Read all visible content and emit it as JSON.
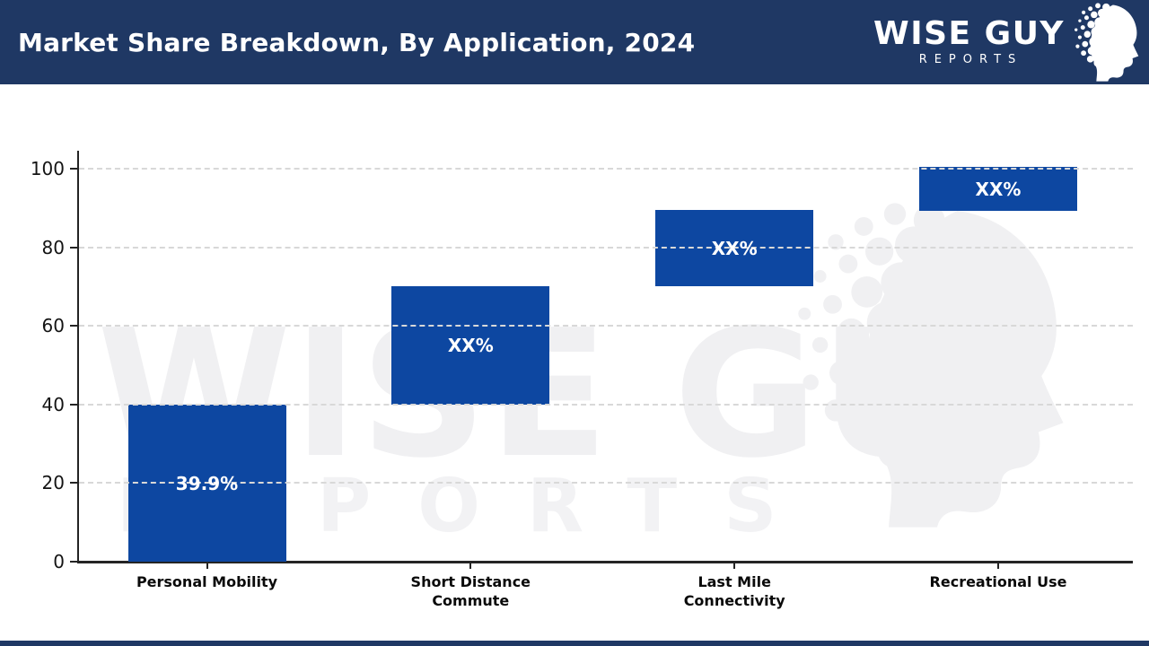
{
  "header": {
    "title": "Market Share Breakdown, By Application, 2024",
    "logo": {
      "line1": "WISE GUY",
      "line2": "REPORTS"
    }
  },
  "watermark": {
    "line1": "WISE GU",
    "line2": "REPORTS"
  },
  "chart_data": {
    "type": "bar",
    "subtype": "waterfall-floating-bars",
    "title": "Market Share Breakdown, By Application, 2024",
    "categories": [
      "Personal Mobility",
      "Short Distance\nCommute",
      "Last Mile\nConnectivity",
      "Recreational Use"
    ],
    "segments": [
      {
        "category": "Personal Mobility",
        "label": "39.9%",
        "start": 0,
        "end": 39.9
      },
      {
        "category": "Short Distance Commute",
        "label": "XX%",
        "start": 40,
        "end": 70
      },
      {
        "category": "Last Mile Connectivity",
        "label": "XX%",
        "start": 70,
        "end": 89.5
      },
      {
        "category": "Recreational Use",
        "label": "XX%",
        "start": 89.3,
        "end": 100.4
      }
    ],
    "yticks": [
      0,
      20,
      40,
      60,
      80,
      100
    ],
    "ylim": [
      0,
      104
    ],
    "xlabel": "",
    "ylabel": "",
    "grid": "dashed-horizontal-over-bars",
    "legend": "none",
    "bar_color": "#0d47a1",
    "bar_label_color": "#ffffff"
  },
  "colors": {
    "header_bg": "#1f3864",
    "footer_bar": "#1f3864",
    "bar": "#0d47a1",
    "gridline": "#d8d8d8",
    "axis": "#242424",
    "watermark": "#f0f0f2"
  }
}
